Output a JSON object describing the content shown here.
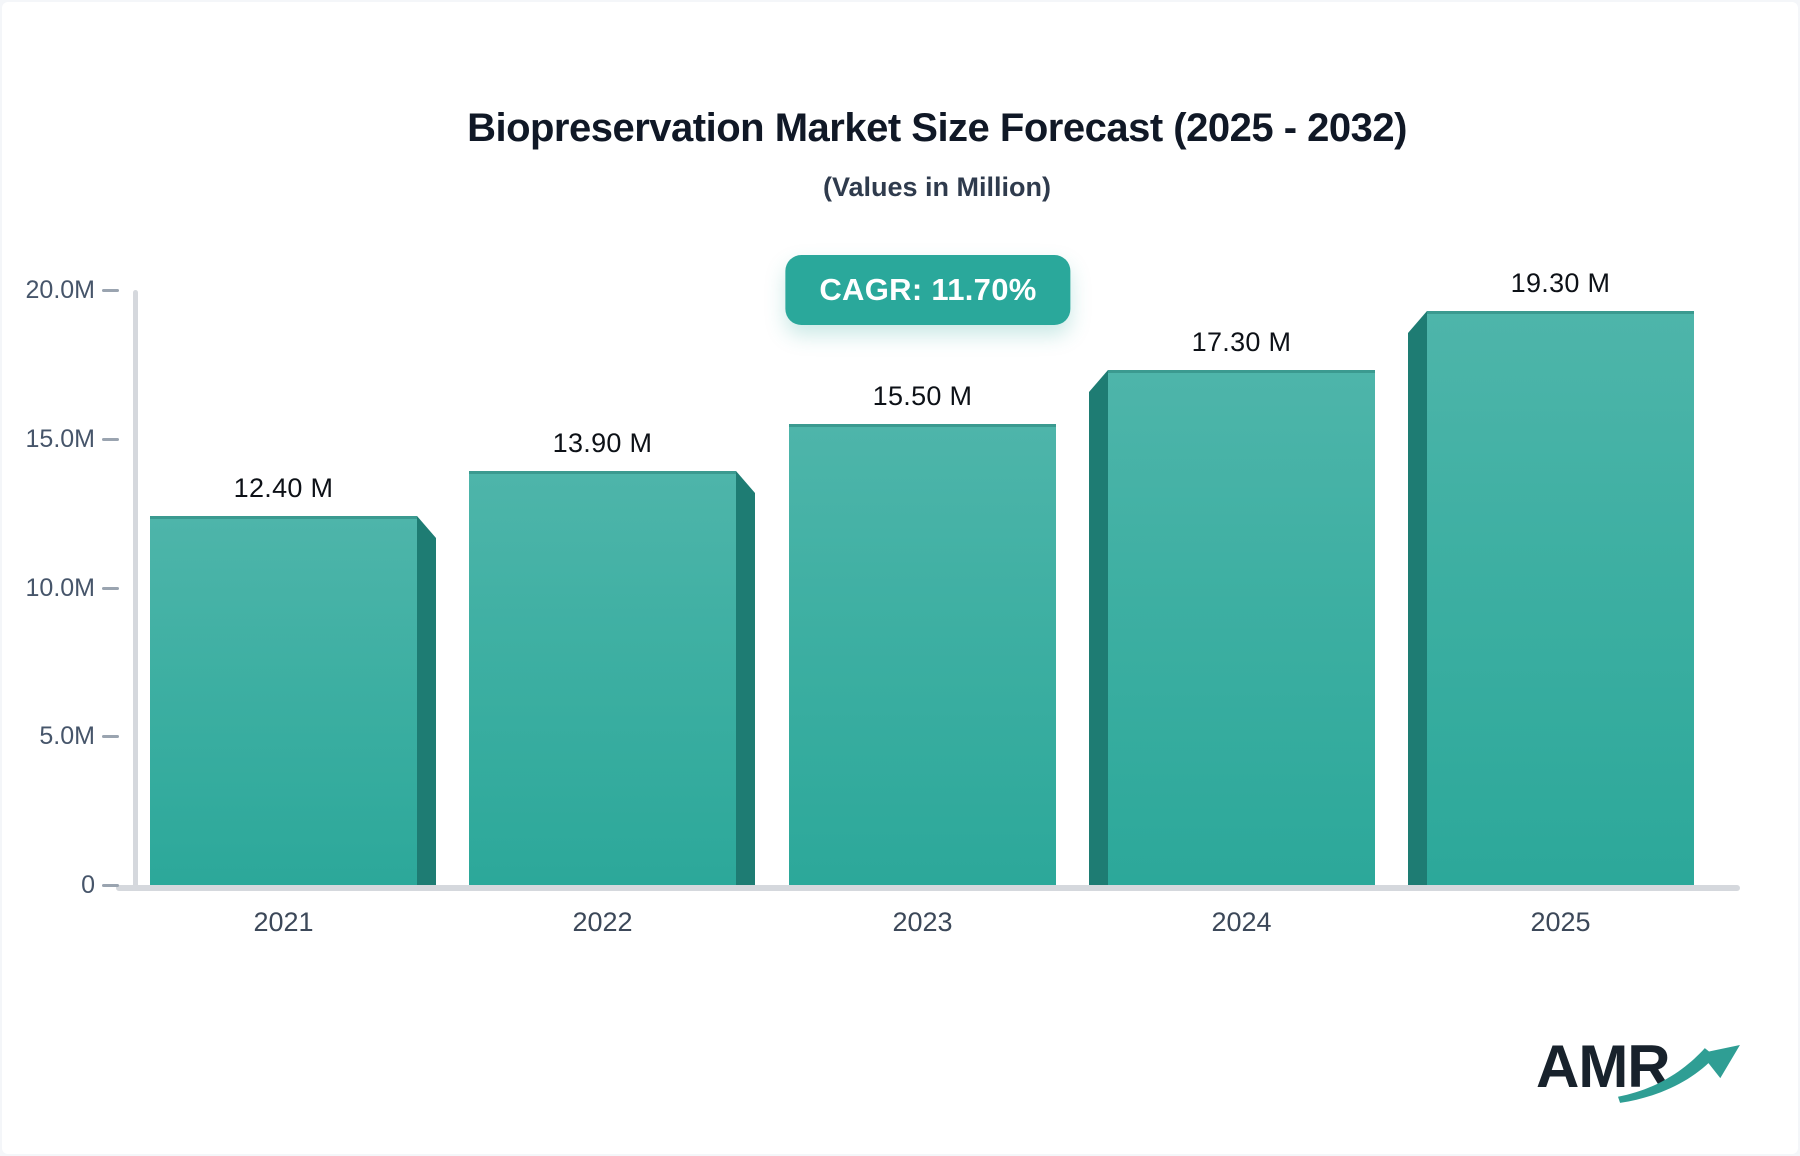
{
  "header": {
    "title": "Biopreservation Market Size Forecast (2025 - 2032)",
    "subtitle": "(Values in Million)"
  },
  "badge": {
    "label": "CAGR: 11.70%",
    "background": "#2aa89b",
    "text_color": "#ffffff"
  },
  "chart_data": {
    "type": "bar",
    "title": "Biopreservation Market Size Forecast (2025 - 2032)",
    "subtitle": "(Values in Million)",
    "categories": [
      "2021",
      "2022",
      "2023",
      "2024",
      "2025"
    ],
    "values": [
      12.4,
      13.9,
      15.5,
      17.3,
      19.3
    ],
    "value_labels": [
      "12.40 M",
      "13.90 M",
      "15.50 M",
      "17.30 M",
      "19.30 M"
    ],
    "annotation": "CAGR: 11.70%",
    "xlabel": "",
    "ylabel": "",
    "ylim": [
      0,
      20
    ],
    "y_ticks": [
      {
        "label": "20.0M",
        "value": 20
      },
      {
        "label": "15.0M",
        "value": 15
      },
      {
        "label": "10.0M",
        "value": 10
      },
      {
        "label": "5.0M",
        "value": 5
      },
      {
        "label": "0",
        "value": 0
      }
    ],
    "grid": false,
    "legend": false,
    "colors": {
      "bar_top": "#4eb5aa",
      "bar_bottom": "#2ca89a",
      "bar_edge": "#1e7c73",
      "axis_line": "#d5d8dd",
      "tick_text": "#46556a",
      "category_text": "#3c4859",
      "value_text": "#0d1117"
    }
  },
  "logo": {
    "text": "AMR",
    "text_color": "#18222c",
    "arrow_color": "#2f9e94"
  }
}
